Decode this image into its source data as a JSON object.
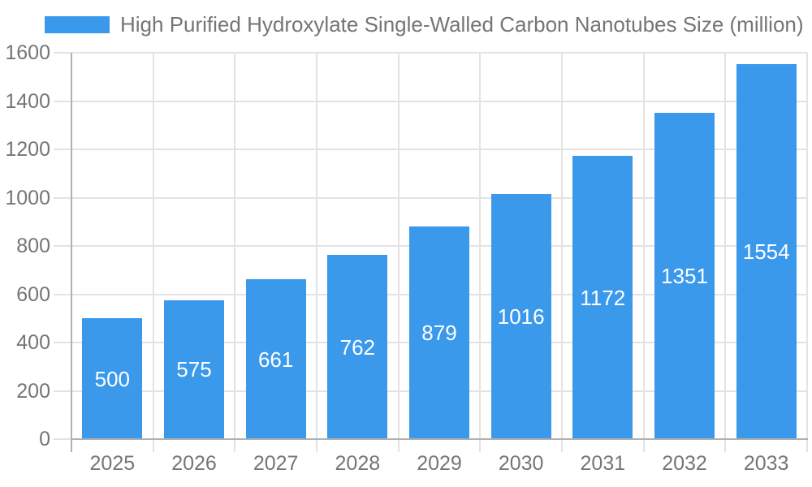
{
  "chart_data": {
    "type": "bar",
    "title": "High Purified Hydroxylate Single-Walled Carbon Nanotubes Size (million)",
    "categories": [
      "2025",
      "2026",
      "2027",
      "2028",
      "2029",
      "2030",
      "2031",
      "2032",
      "2033"
    ],
    "values": [
      500,
      575,
      661,
      762,
      879,
      1016,
      1172,
      1351,
      1554
    ],
    "xlabel": "",
    "ylabel": "",
    "ylim": [
      0,
      1600
    ],
    "ytick_step": 200,
    "grid": "horizontal and vertical",
    "legend_position": "top-left",
    "colors": {
      "bar": "#3B99EC",
      "bar_label_text": "#ffffff",
      "axis_text": "#757575",
      "axis_line": "#b0b0b0",
      "gridline": "#e3e3e3",
      "background": "#ffffff"
    }
  }
}
